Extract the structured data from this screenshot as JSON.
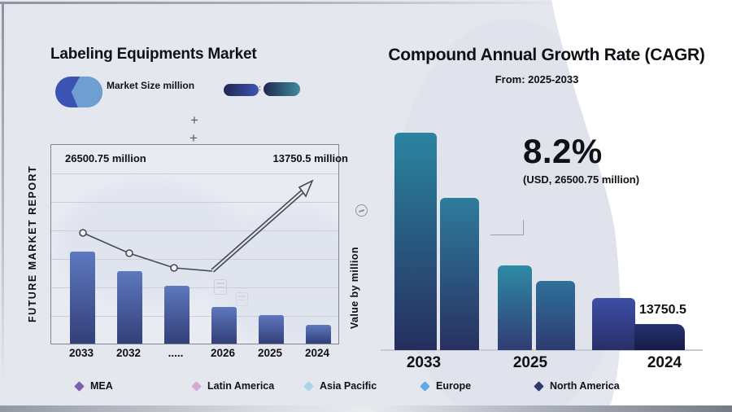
{
  "left_panel": {
    "title": "Labeling Equipments Market",
    "icon_label": "Market Size million",
    "pill_separator": ":",
    "plus_mark": "+",
    "side_label": "FUTURE MARKET REPORT"
  },
  "right_panel": {
    "title": "Compound Annual Growth Rate (CAGR)",
    "subtitle": "From: 2025-2033",
    "cagr_value": "8.2%",
    "cagr_note": "(USD, 26500.75 million)",
    "value_callout": "13750.5"
  },
  "legend": {
    "items": [
      {
        "label": "MEA",
        "color": "#7d5fae"
      },
      {
        "label": "Latin America",
        "color": "#d5a9d6"
      },
      {
        "label": "Asia Pacific",
        "color": "#a7d6e4"
      },
      {
        "label": "Europe",
        "color": "#5ea9e6"
      },
      {
        "label": "North America",
        "color": "#2c3a68"
      }
    ]
  },
  "colors": {
    "background": "#e4e7ee",
    "text": "#101116",
    "grid_line": "#c5c9d4",
    "chart_border": "#80858f",
    "trend_line": "#454a55",
    "capsule_dark": "#3b53b3",
    "capsule_light": "#6f9ed2",
    "pill_navy": "#20284f",
    "pill_blue": "#3e54b5",
    "pill_teal": "#3f8a9b"
  },
  "chart_data": [
    {
      "id": "market-size-by-year",
      "type": "bar",
      "title": "Labeling Equipments Market",
      "categories": [
        "2033",
        "2032",
        ".....",
        "2026",
        "2025",
        "2024"
      ],
      "values_relative_pct": [
        100,
        79,
        63,
        40,
        31,
        20
      ],
      "annotations": {
        "top_left": "26500.75 million",
        "top_right": "13750.5 million"
      },
      "ylabel": "Value by million",
      "xlabel": "",
      "grid": true,
      "bar_gradient": [
        "#5d78bf",
        "#333f78"
      ],
      "line_overlay": "declining line with 3 circle markers over 2033-2026 then rising double-line arrow to top right"
    },
    {
      "id": "cagr-grouped-bars",
      "type": "bar",
      "title": "Compound Annual Growth Rate (CAGR)",
      "subtitle": "From: 2025-2033",
      "categories": [
        "2033",
        "2025",
        "2024"
      ],
      "series": [
        {
          "name": "series-a",
          "values_relative_pct": [
            100,
            39,
            24
          ],
          "gradients": [
            [
              "#2a84a0",
              "#262e5e"
            ],
            [
              "#2e8aa4",
              "#303d74"
            ],
            [
              "#3d4ea6",
              "#272f68"
            ]
          ]
        },
        {
          "name": "series-b",
          "values_relative_pct": [
            70,
            32,
            12
          ],
          "gradients": [
            [
              "#2e7c9c",
              "#283061"
            ],
            [
              "#2f7099",
              "#2d3b72"
            ],
            [
              "#283272",
              "#141b47"
            ]
          ]
        }
      ],
      "cagr": "8.2%",
      "cagr_note": "(USD, 26500.75 million)",
      "value_label": {
        "text": "13750.5",
        "attached_to": "2024"
      },
      "grid": false,
      "legend_position": "bottom"
    }
  ]
}
